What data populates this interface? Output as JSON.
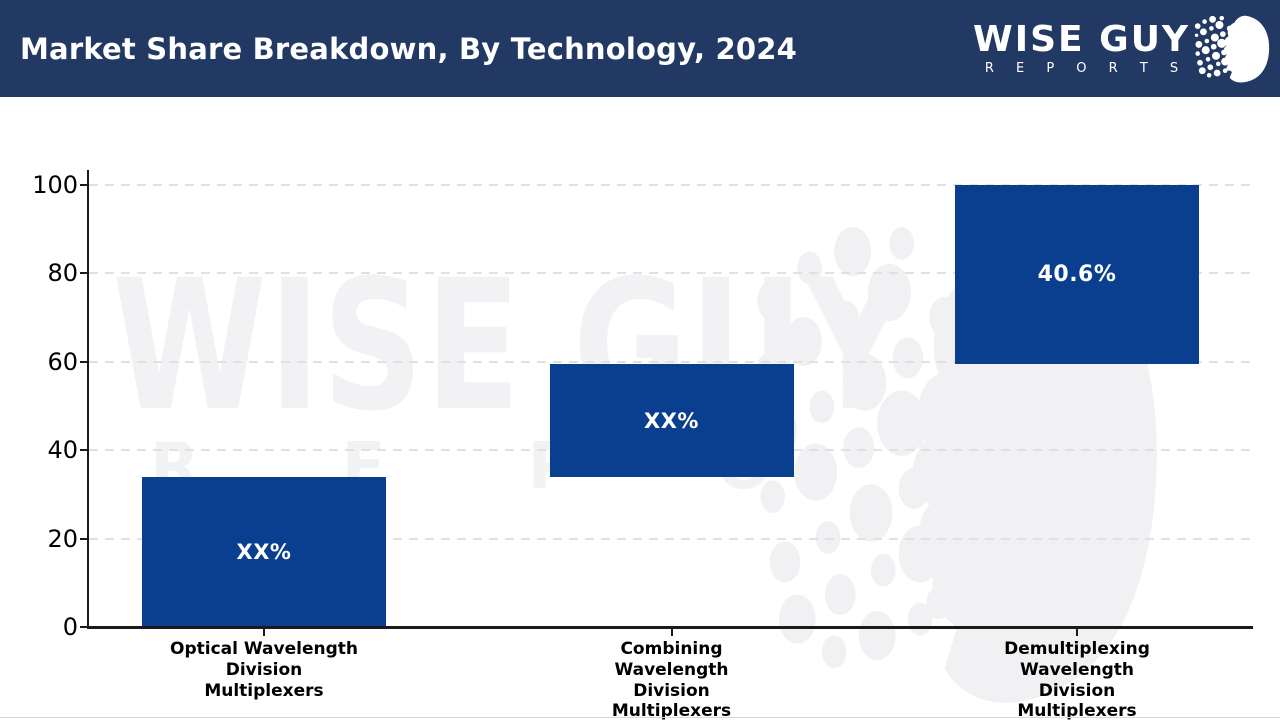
{
  "header": {
    "title": "Market Share Breakdown, By Technology, 2024",
    "bg_color": "#223963",
    "logo": {
      "line1": "WISE GUY",
      "line2": "R E P O R T S"
    }
  },
  "watermark": {
    "line1": "WISE GUY",
    "line2": "R E P O R T S"
  },
  "chart_data": {
    "type": "bar",
    "subtype": "floating-waterfall",
    "title": "Market Share Breakdown, By Technology, 2024",
    "categories": [
      [
        "Optical Wavelength",
        "Division",
        "Multiplexers"
      ],
      [
        "Combining",
        "Wavelength",
        "Division",
        "Multiplexers"
      ],
      [
        "Demultiplexing",
        "Wavelength",
        "Division",
        "Multiplexers"
      ]
    ],
    "segments": [
      {
        "start": 0,
        "end": 34,
        "label": "XX%"
      },
      {
        "start": 34,
        "end": 59.4,
        "label": "XX%"
      },
      {
        "start": 59.4,
        "end": 100,
        "label": "40.6%"
      }
    ],
    "yticks": [
      0,
      20,
      40,
      60,
      80,
      100
    ],
    "ylim": [
      0,
      103
    ],
    "xlabel": "",
    "ylabel": "",
    "grid": "dashed-horizontal",
    "legend": "none",
    "bar_color": "#0a3e8f",
    "bar_label_color": "#ffffff",
    "axis_color": "#1a1a1a",
    "gridline_color": "#e1e1e3"
  }
}
